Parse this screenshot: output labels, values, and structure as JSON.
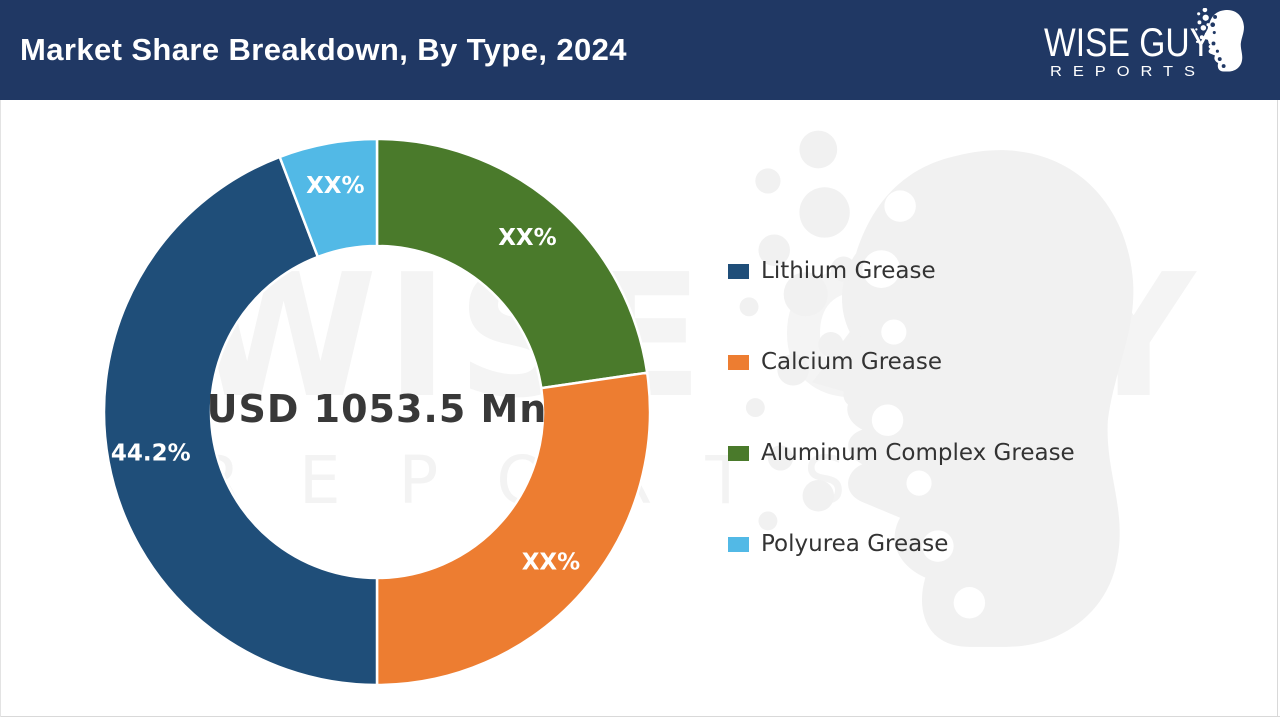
{
  "header": {
    "title": "Market Share Breakdown, By Type, 2024",
    "background": "#203864",
    "logo": {
      "line1": "WISE GUY",
      "line2": "REPORTS"
    }
  },
  "watermark": {
    "line1": "WISE GUY",
    "line2": "REPORTS"
  },
  "chart_data": {
    "type": "pie",
    "subtype": "donut",
    "title": "Market Share Breakdown, By Type, 2024",
    "center_label": "USD 1053.5 Mn",
    "legend_position": "right",
    "start_angle_deg": 0,
    "clockwise": true,
    "draw_order": [
      2,
      1,
      0,
      3
    ],
    "series": [
      {
        "name": "Lithium Grease",
        "value_pct": 44.2,
        "display_label": "44.2%",
        "color": "#1F4E79"
      },
      {
        "name": "Calcium Grease",
        "value_pct": 27.3,
        "display_label": "XX%",
        "color": "#ED7D31"
      },
      {
        "name": "Aluminum Complex Grease",
        "value_pct": 22.7,
        "display_label": "XX%",
        "color": "#4A7A2B"
      },
      {
        "name": "Polyurea Grease",
        "value_pct": 5.8,
        "display_label": "XX%",
        "color": "#52B9E6"
      }
    ]
  }
}
